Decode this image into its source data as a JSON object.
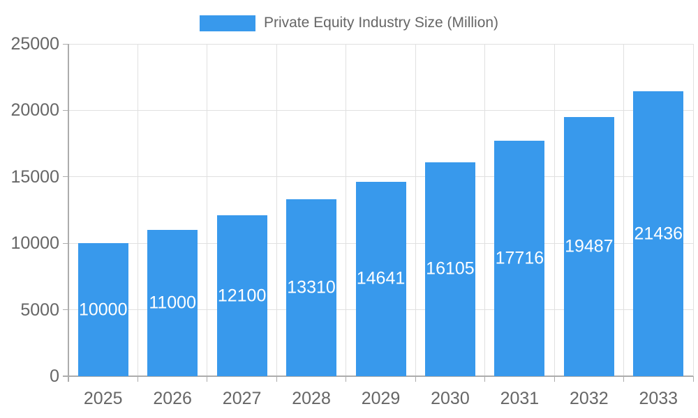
{
  "chart_data": {
    "type": "bar",
    "title": "Private Equity Industry Size (Million)",
    "categories": [
      "2025",
      "2026",
      "2027",
      "2028",
      "2029",
      "2030",
      "2031",
      "2032",
      "2033"
    ],
    "values": [
      10000,
      11000,
      12100,
      13310,
      14641,
      16105,
      17716,
      19487,
      21436
    ],
    "series_name": "Private Equity Industry Size (Million)",
    "xlabel": "",
    "ylabel": "",
    "ylim": [
      0,
      25000
    ],
    "yticks": [
      0,
      5000,
      10000,
      15000,
      20000,
      25000
    ],
    "grid": true,
    "legend_position": "top-center",
    "bar_value_labels": "inside-center",
    "colors": {
      "bar": "#3899EC",
      "grid": "#E0E0E0",
      "axis": "#ACACAC",
      "tick_text": "#666666",
      "legend_text": "#666666",
      "bar_label_text": "#FFFFFF"
    }
  }
}
